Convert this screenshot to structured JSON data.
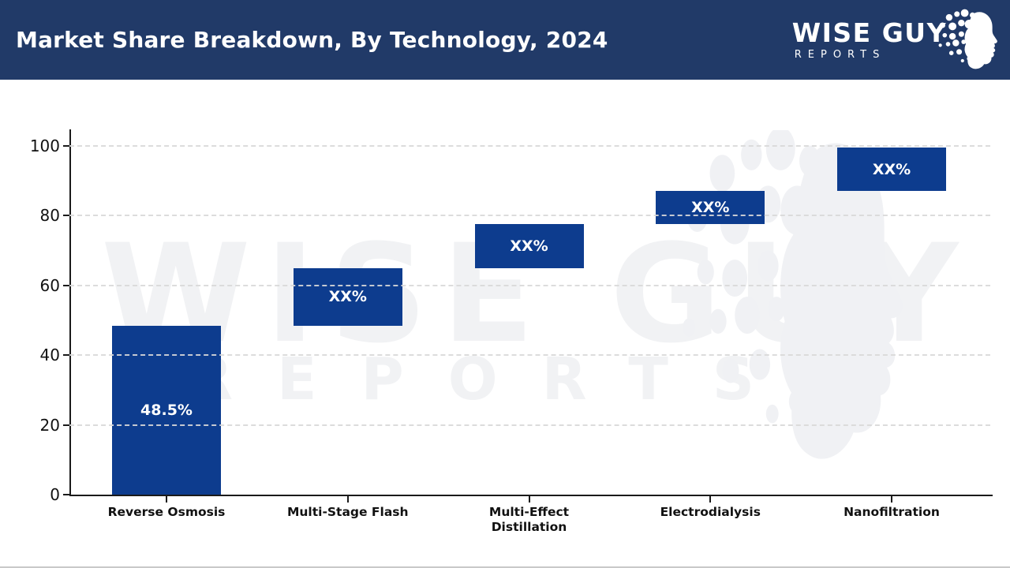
{
  "header": {
    "title": "Market Share Breakdown, By Technology, 2024",
    "logo": {
      "line1": "WISE GUY",
      "line2": "REPORTS"
    }
  },
  "watermark": {
    "line1": "WISE GUY",
    "line2": "REPORTS"
  },
  "chart_data": {
    "type": "bar",
    "subtype": "waterfall",
    "title": "Market Share Breakdown, By Technology, 2024",
    "categories": [
      "Reverse Osmosis",
      "Multi-Stage Flash",
      "Multi-Effect Distillation",
      "Electrodialysis",
      "Nanofiltration"
    ],
    "segments": [
      {
        "category": "Reverse Osmosis",
        "start": 0,
        "end": 48.5,
        "label": "48.5%"
      },
      {
        "category": "Multi-Stage Flash",
        "start": 48.5,
        "end": 65,
        "label": "XX%"
      },
      {
        "category": "Multi-Effect Distillation",
        "start": 65,
        "end": 77.5,
        "label": "XX%"
      },
      {
        "category": "Electrodialysis",
        "start": 77.5,
        "end": 87,
        "label": "XX%"
      },
      {
        "category": "Nanofiltration",
        "start": 87,
        "end": 99.5,
        "label": "XX%"
      }
    ],
    "xlabel": "",
    "ylabel": "",
    "ylim": [
      0,
      104.8
    ],
    "yticks": [
      0,
      20,
      40,
      60,
      80,
      100
    ],
    "grid": "dashed-horizontal",
    "legend": "none",
    "bar_color": "#0d3c8e"
  },
  "colors": {
    "header_bg": "#213a68",
    "bar": "#0d3c8e",
    "axis": "#1a1a1a",
    "grid": "#d9d9d9",
    "text": "#111111",
    "watermark": "#f1f2f4"
  }
}
